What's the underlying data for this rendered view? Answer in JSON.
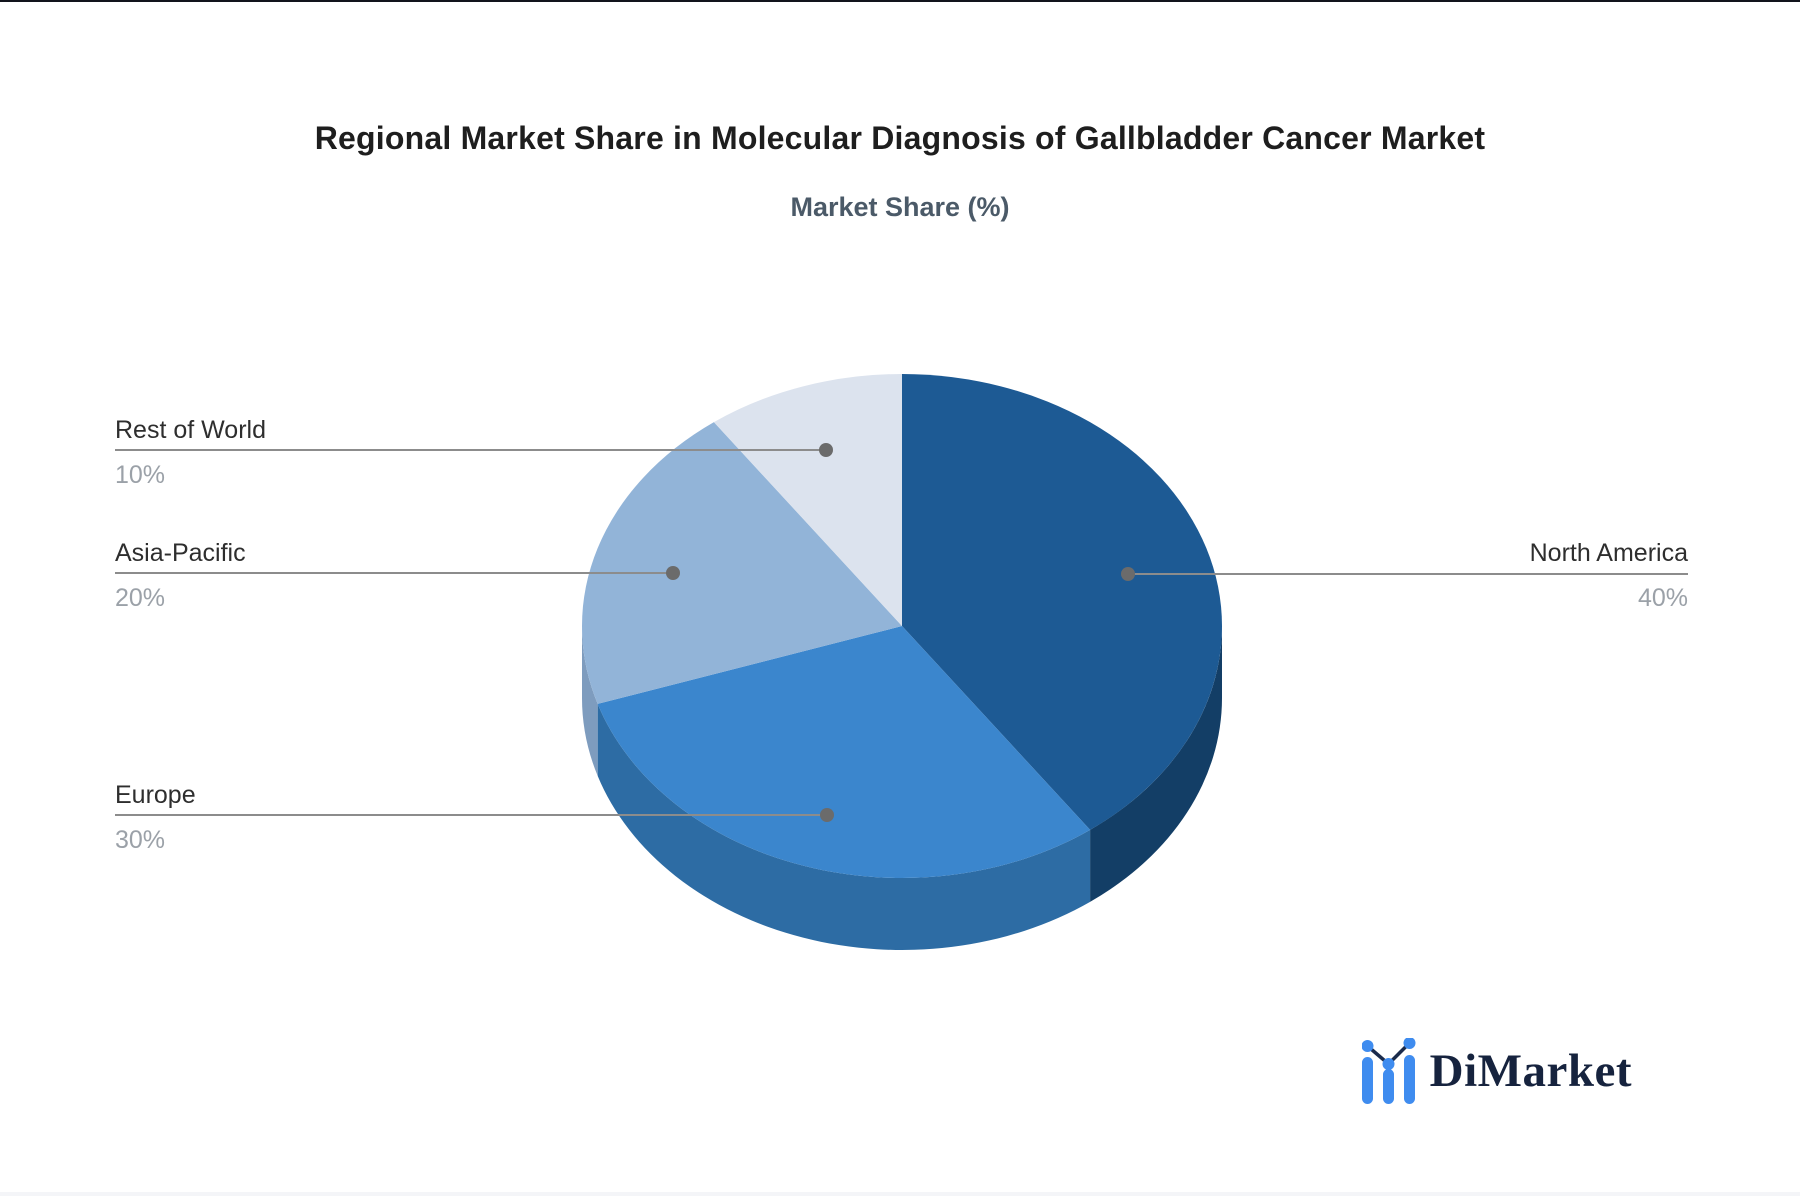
{
  "chart_data": {
    "type": "pie",
    "title": "Regional Market Share in Molecular Diagnosis of Gallbladder Cancer Market",
    "subtitle": "Market Share (%)",
    "unit": "%",
    "style": "3d-pie",
    "start_angle_deg": 0,
    "clockwise": true,
    "slices": [
      {
        "label": "North America",
        "value": 40,
        "pct_label": "40%",
        "color": "#1D5A94",
        "side_color": "#133E66"
      },
      {
        "label": "Europe",
        "value": 30,
        "pct_label": "30%",
        "color": "#3B86CD",
        "side_color": "#2D6CA4"
      },
      {
        "label": "Asia-Pacific",
        "value": 20,
        "pct_label": "20%",
        "color": "#92B4D8",
        "side_color": "#7E9CBE"
      },
      {
        "label": "Rest of World",
        "value": 10,
        "pct_label": "10%",
        "color": "#DCE3EE",
        "side_color": "#B9C5D7"
      }
    ]
  },
  "logo": {
    "text": "DiMarket",
    "icon": "bar-line-chart-icon"
  },
  "colors": {
    "title": "#1e1e1e",
    "subtitle": "#4b5a68",
    "label_text": "#2e2e2e",
    "pct_text": "#9ba1a8",
    "leader_line": "#8c8c8c",
    "leader_dot": "#6b6b6b",
    "logo_text": "#16233e",
    "logo_accent": "#3F8CEF",
    "logo_dark": "#1B2B4B"
  }
}
